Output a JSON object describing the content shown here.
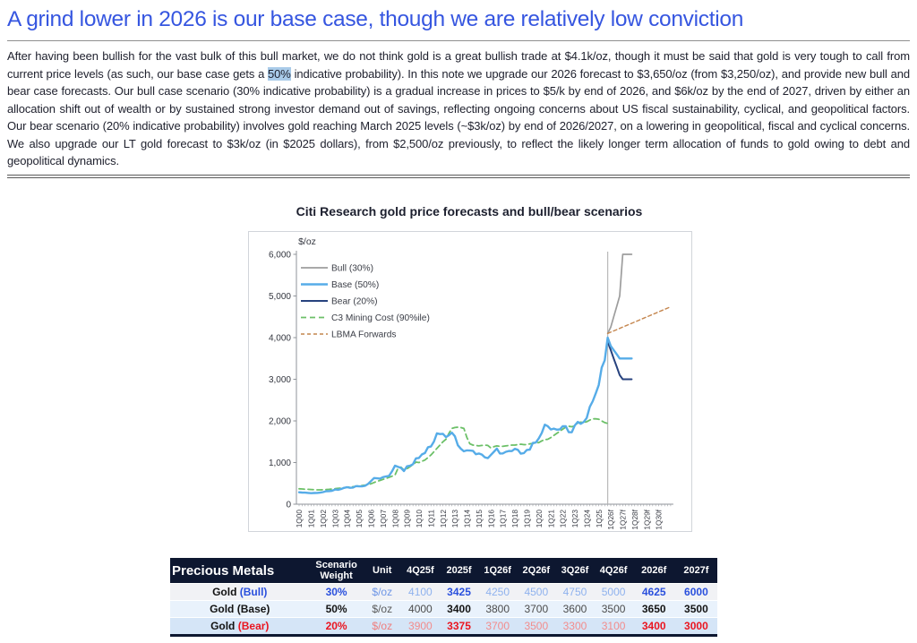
{
  "page": {
    "title": "A grind lower in 2026 is our base case, though we are relatively low conviction",
    "paragraph": {
      "before": "After having been bullish for the vast bulk of this bull market, we do not think gold is a great bullish trade at $4.1k/oz, though it must be said that gold is very tough to call from current price levels (as such, our base case gets a ",
      "highlight": "50%",
      "after": " indicative probability).  In this note we upgrade our 2026 forecast to $3,650/oz (from $3,250/oz), and provide new bull and bear case forecasts. Our bull case scenario (30% indicative probability) is a gradual increase in prices to $5/k by end of 2026, and $6k/oz by the end of 2027, driven by either an allocation shift out of wealth or by sustained strong investor demand out of savings, reflecting ongoing concerns about US fiscal sustainability, cyclical, and geopolitical factors. Our bear scenario (20% indicative probability) involves gold reaching March 2025 levels (~$3k/oz) by end of 2026/2027, on a lowering in geopolitical, fiscal and cyclical concerns. We also upgrade our LT gold forecast to $3k/oz (in $2025 dollars), from $2,500/oz previously, to reflect the likely longer term allocation of funds to gold owing to debt and geopolitical dynamics."
    }
  },
  "chart_data": {
    "type": "line",
    "title": "Citi Research gold price forecasts and bull/bear scenarios",
    "ylabel": "$/oz",
    "ylim": [
      0,
      6000
    ],
    "grid": false,
    "legend_position": "upper-left-inside",
    "x_frequency": "quarterly",
    "x_tick_labels": [
      "1Q00",
      "1Q01",
      "1Q02",
      "1Q03",
      "1Q04",
      "1Q05",
      "1Q06",
      "1Q07",
      "1Q08",
      "1Q09",
      "1Q10",
      "1Q11",
      "1Q12",
      "1Q13",
      "1Q14",
      "1Q15",
      "1Q16",
      "1Q17",
      "1Q18",
      "1Q19",
      "1Q20",
      "1Q21",
      "1Q22",
      "1Q23",
      "1Q24",
      "1Q25",
      "1Q26f",
      "1Q27f",
      "1Q28f",
      "1Q29f",
      "1Q30f"
    ],
    "y_ticks": [
      {
        "label": "0",
        "value": 0
      },
      {
        "label": "1,000",
        "value": 1000
      },
      {
        "label": "2,000",
        "value": 2000
      },
      {
        "label": "3,000",
        "value": 3000
      },
      {
        "label": "4,000",
        "value": 4000
      },
      {
        "label": "5,000",
        "value": 5000
      },
      {
        "label": "6,000",
        "value": 6000
      }
    ],
    "forecast_divider_quarter_index": 103,
    "series": [
      {
        "name": "Bull (30%)",
        "color": "#9d9d9d",
        "dash": "",
        "width": 1.7,
        "z": 4,
        "start": 103,
        "values": [
          4100,
          4250,
          4500,
          4750,
          5000,
          6000,
          6000,
          6000,
          6000
        ]
      },
      {
        "name": "Base (50%)",
        "color": "#56ace8",
        "dash": "",
        "width": 2.4,
        "z": 3,
        "start": 0,
        "values": [
          285,
          279,
          277,
          270,
          265,
          268,
          272,
          278,
          290,
          312,
          314,
          322,
          352,
          347,
          363,
          392,
          408,
          393,
          401,
          434,
          427,
          427,
          440,
          485,
          554,
          628,
          622,
          614,
          650,
          667,
          680,
          788,
          925,
          896,
          870,
          795,
          909,
          922,
          960,
          1100,
          1110,
          1196,
          1227,
          1367,
          1386,
          1506,
          1700,
          1683,
          1691,
          1610,
          1655,
          1719,
          1630,
          1415,
          1329,
          1272,
          1293,
          1288,
          1282,
          1200,
          1218,
          1192,
          1124,
          1105,
          1181,
          1258,
          1335,
          1218,
          1219,
          1257,
          1278,
          1275,
          1329,
          1306,
          1213,
          1226,
          1304,
          1309,
          1472,
          1480,
          1583,
          1711,
          1910,
          1874,
          1794,
          1816,
          1790,
          1795,
          1874,
          1871,
          1729,
          1726,
          1890,
          1976,
          1928,
          1976,
          2070,
          2338,
          2474,
          2663,
          2860,
          3280,
          3456,
          4000,
          3800,
          3700,
          3600,
          3500,
          3500,
          3500,
          3500,
          3500
        ]
      },
      {
        "name": "Bear (20%)",
        "color": "#27427e",
        "dash": "",
        "width": 2.0,
        "z": 2,
        "start": 103,
        "values": [
          3900,
          3700,
          3500,
          3300,
          3100,
          3000,
          3000,
          3000,
          3000
        ]
      },
      {
        "name": "C3 Mining Cost (90%ile)",
        "color": "#6cc068",
        "dash": "6,4",
        "width": 1.8,
        "z": 1,
        "start": 0,
        "values": [
          370,
          365,
          360,
          358,
          352,
          348,
          345,
          345,
          348,
          352,
          358,
          365,
          372,
          380,
          388,
          396,
          405,
          412,
          420,
          430,
          440,
          448,
          456,
          468,
          490,
          520,
          548,
          570,
          595,
          618,
          645,
          672,
          700,
          860,
          890,
          820,
          850,
          900,
          950,
          1010,
          1000,
          1030,
          1060,
          1120,
          1180,
          1260,
          1340,
          1420,
          1500,
          1560,
          1700,
          1820,
          1840,
          1850,
          1840,
          1820,
          1600,
          1450,
          1420,
          1410,
          1400,
          1410,
          1420,
          1410,
          1350,
          1380,
          1400,
          1390,
          1390,
          1400,
          1410,
          1420,
          1420,
          1430,
          1440,
          1430,
          1430,
          1450,
          1460,
          1470,
          1480,
          1520,
          1550,
          1560,
          1600,
          1650,
          1700,
          1750,
          1800,
          1850,
          1870,
          1860,
          1880,
          1950,
          1970,
          1960,
          1980,
          2020,
          2050,
          2050,
          2040,
          2000,
          1960,
          1940
        ]
      },
      {
        "name": "LBMA Forwards",
        "color": "#c4854d",
        "dash": "4,3",
        "width": 1.4,
        "z": 5,
        "start": 103,
        "values": [
          4100,
          4131,
          4161,
          4192,
          4222,
          4253,
          4283,
          4314,
          4344,
          4375,
          4405,
          4436,
          4466,
          4497,
          4527,
          4558,
          4588,
          4619,
          4649,
          4680,
          4710,
          4740
        ]
      }
    ]
  },
  "table": {
    "header": [
      "Precious Metals",
      "Scenario Weight",
      "Unit",
      "4Q25f",
      "2025f",
      "1Q26f",
      "2Q26f",
      "3Q26f",
      "4Q26f",
      "2026f",
      "2027f"
    ],
    "bold_value_columns": [
      1,
      6,
      7
    ],
    "rows": [
      {
        "metal": "Gold ",
        "scenario": "(Bull)",
        "weight": "30%",
        "unit": "$/oz",
        "tone": "bull",
        "values": [
          "4100",
          "3425",
          "4250",
          "4500",
          "4750",
          "5000",
          "4625",
          "6000"
        ]
      },
      {
        "metal": "Gold ",
        "scenario": "(Base)",
        "weight": "50%",
        "unit": "$/oz",
        "tone": "base",
        "values": [
          "4000",
          "3400",
          "3800",
          "3700",
          "3600",
          "3500",
          "3650",
          "3500"
        ]
      },
      {
        "metal": "Gold ",
        "scenario": "(Bear)",
        "weight": "20%",
        "unit": "$/oz",
        "tone": "bear",
        "values": [
          "3900",
          "3375",
          "3700",
          "3500",
          "3300",
          "3100",
          "3400",
          "3000"
        ]
      }
    ]
  }
}
